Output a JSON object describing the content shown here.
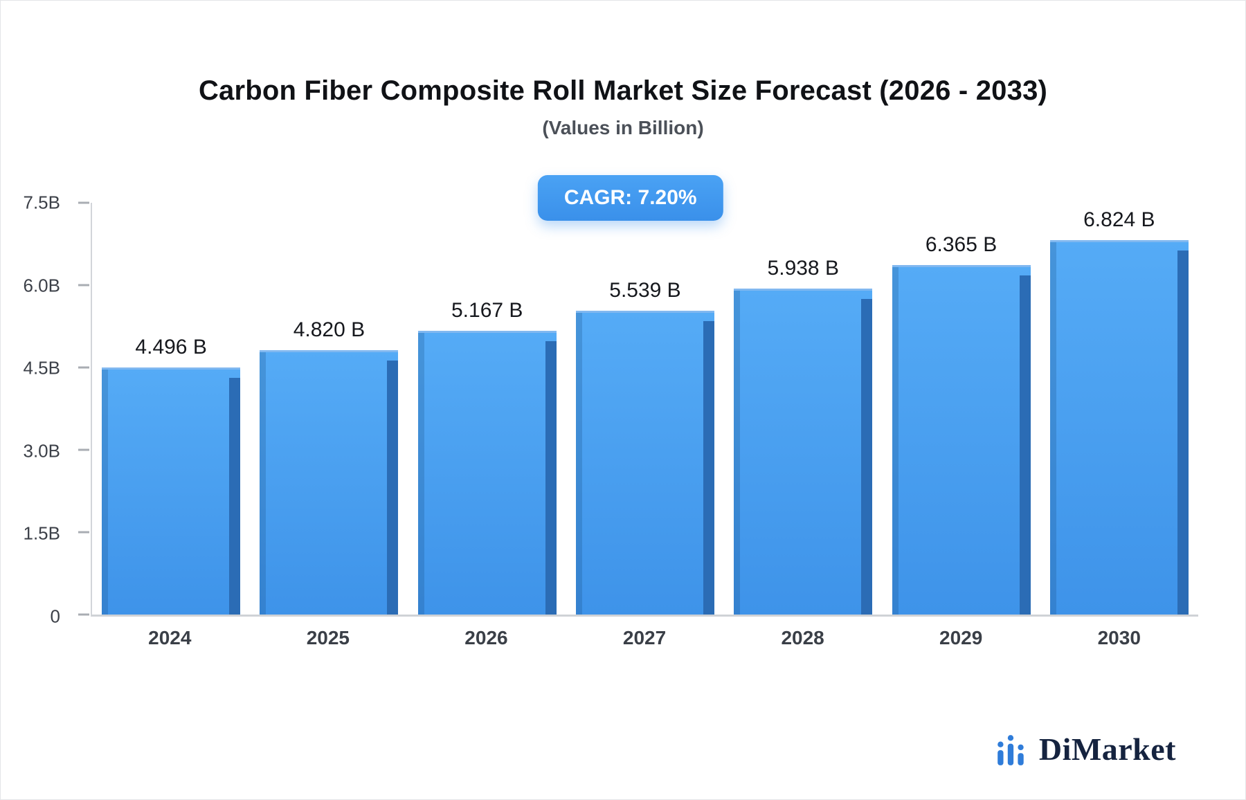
{
  "header": {
    "title": "Carbon Fiber Composite Roll Market Size Forecast (2026 - 2033)",
    "subtitle": "(Values in Billion)"
  },
  "badge": {
    "label": "CAGR: 7.20%"
  },
  "chart_data": {
    "type": "bar",
    "categories": [
      "2024",
      "2025",
      "2026",
      "2027",
      "2028",
      "2029",
      "2030"
    ],
    "values": [
      4.496,
      4.82,
      5.167,
      5.539,
      5.938,
      6.365,
      6.824
    ],
    "value_labels": [
      "4.496 B",
      "4.820 B",
      "5.167 B",
      "5.539 B",
      "5.938 B",
      "6.365 B",
      "6.824 B"
    ],
    "title": "Carbon Fiber Composite Roll Market Size Forecast (2026 - 2033)",
    "xlabel": "",
    "ylabel": "",
    "ylim": [
      0,
      7.5
    ],
    "yticks": [
      {
        "label": "7.5B",
        "value": 7.5
      },
      {
        "label": "6.0B",
        "value": 6.0
      },
      {
        "label": "4.5B",
        "value": 4.5
      },
      {
        "label": "3.0B",
        "value": 3.0
      },
      {
        "label": "1.5B",
        "value": 1.5
      },
      {
        "label": "0",
        "value": 0
      }
    ],
    "grid": false,
    "legend": "none",
    "bar_color_top": "#55abf6",
    "bar_color_bottom": "#3e93e9",
    "bar_side_color": "#2b6cb5"
  },
  "colors": {
    "accent_blue": "#3a90ea",
    "title_text": "#101216",
    "axis_text": "#3c4048",
    "brand_navy": "#15233f",
    "brand_blue": "#2f7cd9"
  },
  "logo": {
    "text": "DiMarket",
    "icon": "mini-bar-chart-icon"
  }
}
